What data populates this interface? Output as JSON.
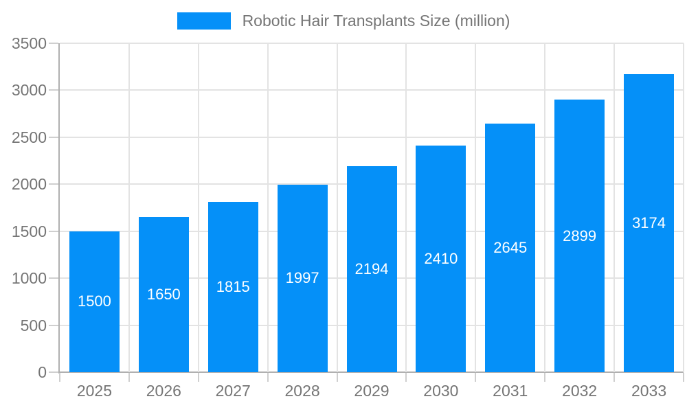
{
  "legend": {
    "label": "Robotic Hair Transplants Size (million)"
  },
  "chart_data": {
    "type": "bar",
    "title": "Robotic Hair Transplants Size (million)",
    "categories": [
      "2025",
      "2026",
      "2027",
      "2028",
      "2029",
      "2030",
      "2031",
      "2032",
      "2033"
    ],
    "values": [
      1500,
      1650,
      1815,
      1997,
      2194,
      2410,
      2645,
      2899,
      3174
    ],
    "series_name": "Robotic Hair Transplants Size (million)",
    "xlabel": "",
    "ylabel": "",
    "ylim": [
      0,
      3500
    ],
    "yticks": [
      0,
      500,
      1000,
      1500,
      2000,
      2500,
      3000,
      3500
    ],
    "grid": true,
    "legend_position": "top-center",
    "bar_label_position": "inside-center"
  },
  "colors": {
    "bar": "#0590f8",
    "grid": "#e3e3e3",
    "axis": "#b0b0b0",
    "tick": "#cfcfcf",
    "label_text": "#757575",
    "bar_label_text": "#ffffff",
    "background": "#ffffff"
  }
}
